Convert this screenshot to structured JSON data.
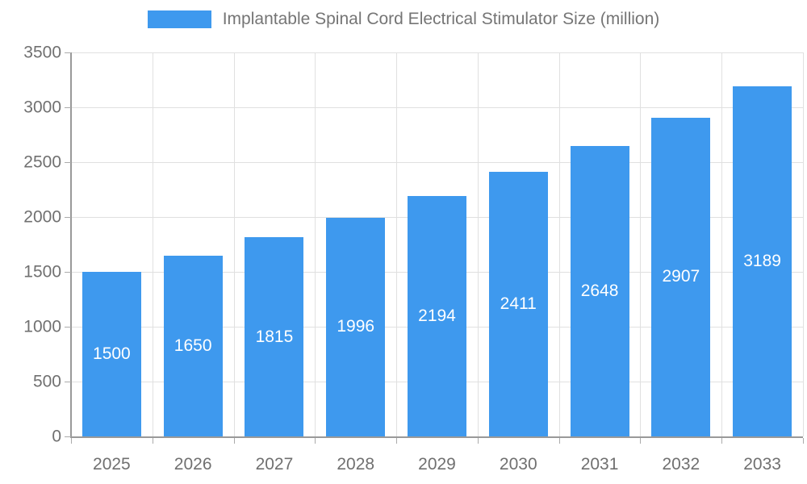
{
  "chart_data": {
    "type": "bar",
    "title": "Implantable Spinal Cord Electrical Stimulator Size (million)",
    "legend": [
      "Implantable Spinal Cord Electrical Stimulator Size (million)"
    ],
    "legend_position": "top",
    "categories": [
      "2025",
      "2026",
      "2027",
      "2028",
      "2029",
      "2030",
      "2031",
      "2032",
      "2033"
    ],
    "values": [
      1500,
      1650,
      1815,
      1996,
      2194,
      2411,
      2648,
      2907,
      3189
    ],
    "xlabel": "",
    "ylabel": "",
    "ylim": [
      0,
      3500
    ],
    "ytick_step": 500,
    "ytick_labels": [
      "0",
      "500",
      "1000",
      "1500",
      "2000",
      "2500",
      "3000",
      "3500"
    ],
    "grid": true,
    "value_labels_shown": true,
    "bar_color": "#3E99EE",
    "value_label_color": "#FFFFFF",
    "axis_label_color": "#707070",
    "legend_text_color": "#757575",
    "grid_color": "#E0E0E0",
    "axis_line_color": "#999999",
    "background_color": "#FFFFFF"
  }
}
